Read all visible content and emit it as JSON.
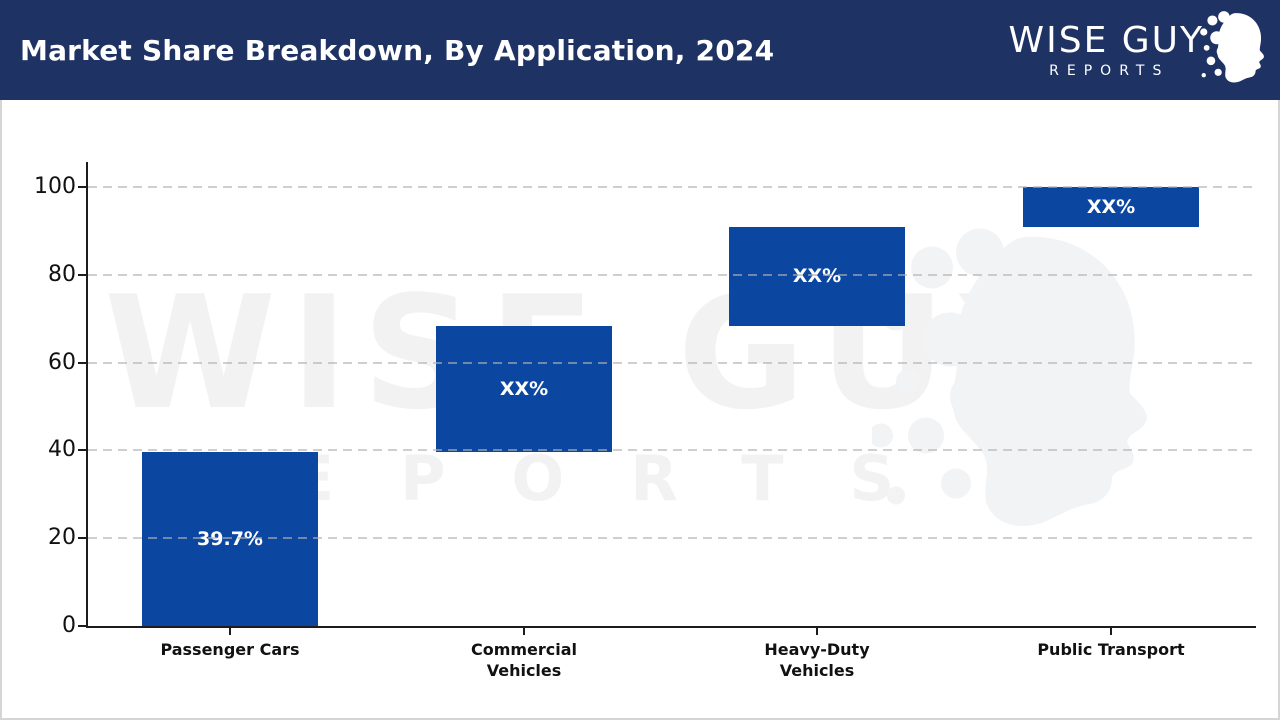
{
  "header": {
    "title": "Market Share Breakdown, By Application, 2024",
    "logo": {
      "primary": "WISE GUY",
      "secondary": "REPORTS"
    },
    "bg_color": "#1e3264"
  },
  "watermark": {
    "primary": "WISE GUY.",
    "secondary": "REPORTS"
  },
  "chart_data": {
    "type": "bar",
    "subtype": "waterfall",
    "title": "Market Share Breakdown, By Application, 2024",
    "categories": [
      "Passenger Cars",
      "Commercial Vehicles",
      "Heavy-Duty Vehicles",
      "Public Transport"
    ],
    "category_label_lines": [
      [
        "Passenger Cars"
      ],
      [
        "Commercial",
        "Vehicles"
      ],
      [
        "Heavy-Duty",
        "Vehicles"
      ],
      [
        "Public Transport"
      ]
    ],
    "segments": [
      {
        "category": "Passenger Cars",
        "start": 0,
        "end": 39.7,
        "label": "39.7%"
      },
      {
        "category": "Commercial Vehicles",
        "start": 39.7,
        "end": 68.4,
        "label": "XX%"
      },
      {
        "category": "Heavy-Duty Vehicles",
        "start": 68.4,
        "end": 91.0,
        "label": "XX%"
      },
      {
        "category": "Public Transport",
        "start": 91.0,
        "end": 100.0,
        "label": "XX%"
      }
    ],
    "yticks": [
      0,
      20,
      40,
      60,
      80,
      100
    ],
    "ylim": [
      0,
      110
    ],
    "xlabel": "",
    "ylabel": "",
    "legend": "none",
    "grid": "horizontal-dashed",
    "bar_color": "#0b47a1",
    "bar_label_color": "#ffffff",
    "axis_color": "#1c1c1c",
    "grid_color": "#d8d8d8",
    "header_color": "#1e3264"
  }
}
